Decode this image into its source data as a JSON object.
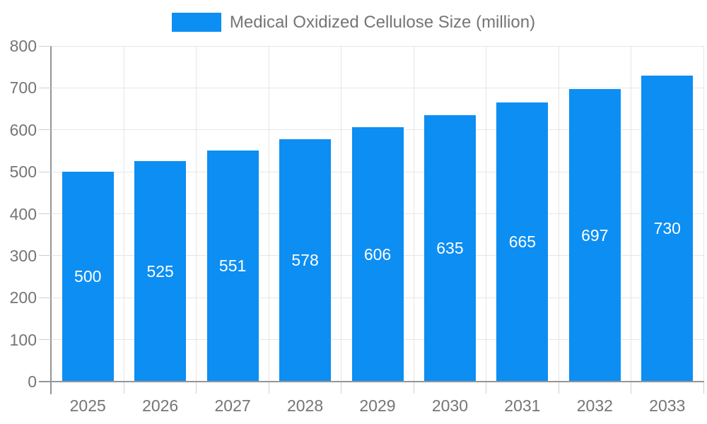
{
  "legend": {
    "label": "Medical Oxidized Cellulose Size (million)"
  },
  "style": {
    "bar_color": "#0d8ef2",
    "grid_color": "#e6e6e6",
    "axis_color": "#959595",
    "tick_color": "#cfcfcf",
    "tick_text_color": "#757575",
    "value_text_color": "#ffffff",
    "background_color": "#ffffff"
  },
  "chart_data": {
    "type": "bar",
    "title": "Medical Oxidized Cellulose Size (million)",
    "series_name": "Medical Oxidized Cellulose Size (million)",
    "categories": [
      "2025",
      "2026",
      "2027",
      "2028",
      "2029",
      "2030",
      "2031",
      "2032",
      "2033"
    ],
    "values": [
      500,
      525,
      551,
      578,
      606,
      635,
      665,
      697,
      730
    ],
    "xlabel": "",
    "ylabel": "",
    "ylim": [
      0,
      800
    ],
    "ytick_step": 100,
    "yticks": [
      "0",
      "100",
      "200",
      "300",
      "400",
      "500",
      "600",
      "700",
      "800"
    ],
    "grid": true,
    "legend_position": "top-center",
    "bar_labels": "centered-white"
  }
}
